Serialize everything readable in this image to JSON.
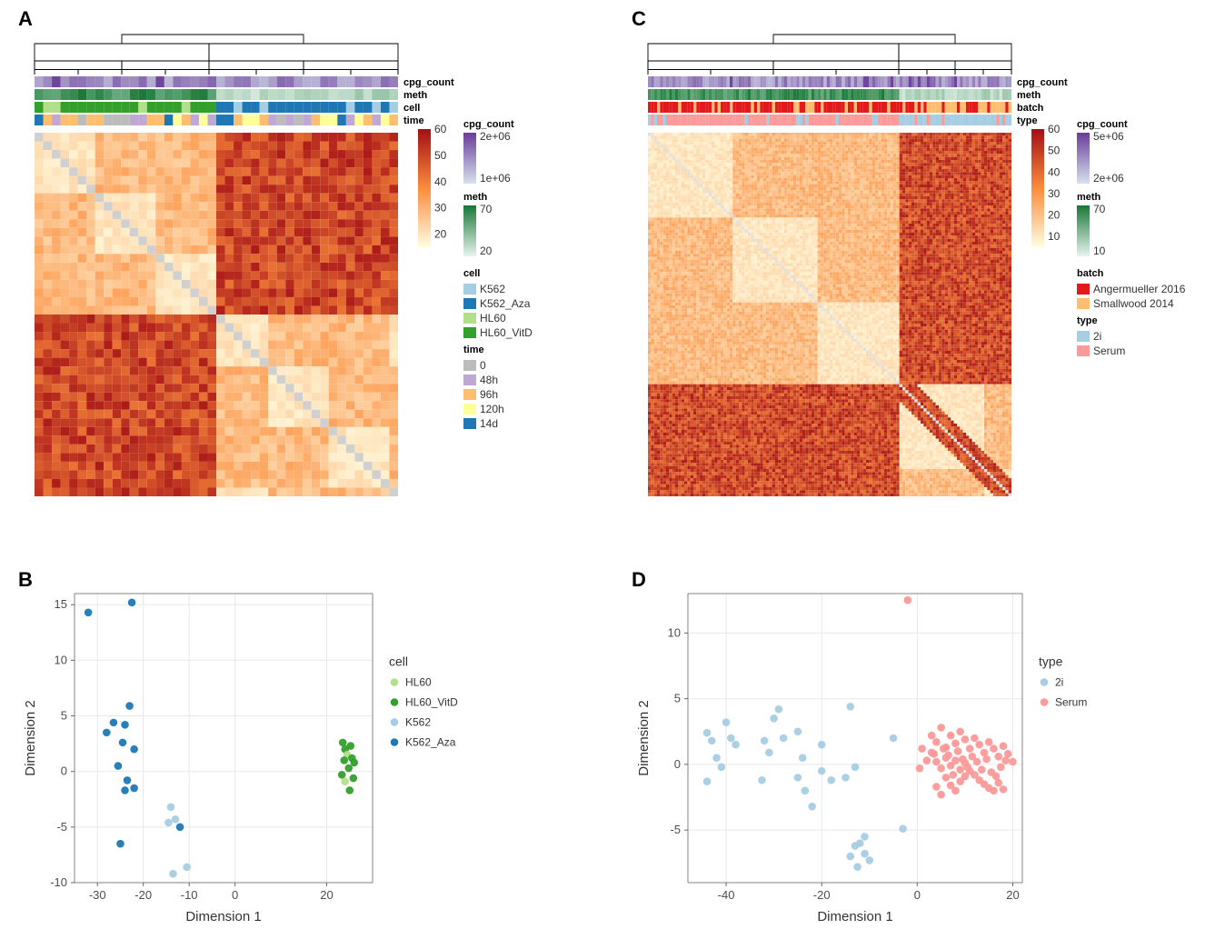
{
  "panelA": {
    "label": "A",
    "annotation_tracks": [
      "cpg_count",
      "meth",
      "cell",
      "time"
    ],
    "legends": {
      "heatmap_scale": {
        "ticks": [
          20,
          30,
          40,
          50,
          60
        ],
        "min": 15,
        "max": 60
      },
      "cpg_count": {
        "title": "cpg_count",
        "ticks": [
          "1e+06",
          "2e+06"
        ],
        "colors_low": "#d8e3ed",
        "colors_high": "#6a3d9a"
      },
      "meth": {
        "title": "meth",
        "ticks": [
          "20",
          "70"
        ],
        "colors_low": "#e8f5f0",
        "colors_high": "#1b7837"
      },
      "cell": {
        "title": "cell",
        "items": [
          "K562",
          "K562_Aza",
          "HL60",
          "HL60_VitD"
        ],
        "colors": [
          "#a6cee3",
          "#1f78b4",
          "#b2df8a",
          "#33a02c"
        ]
      },
      "time": {
        "title": "time",
        "items": [
          "0",
          "48h",
          "96h",
          "120h",
          "14d"
        ],
        "colors": [
          "#bcbcbc",
          "#bfa8d4",
          "#fdbf6f",
          "#ffff99",
          "#1f78b4"
        ]
      }
    },
    "heatmap": {
      "n": 42,
      "diag_color": "#d0d0d0",
      "colormap": {
        "low": "#fffee3",
        "mid": "#fc8d3c",
        "high": "#a50f15"
      }
    },
    "dendrogram_major_split": 0.48
  },
  "panelB": {
    "label": "B",
    "type": "scatter",
    "xlabel": "Dimension 1",
    "ylabel": "Dimension 2",
    "xlim": [
      -35,
      30
    ],
    "ylim": [
      -10,
      16
    ],
    "xticks": [
      -30,
      -20,
      -10,
      0,
      20
    ],
    "yticks": [
      -10,
      -5,
      0,
      5,
      10,
      15
    ],
    "grid_color": "#e8e8e8",
    "background_color": "#ffffff",
    "legend": {
      "title": "cell",
      "items": [
        "HL60",
        "HL60_VitD",
        "K562",
        "K562_Aza"
      ],
      "colors": [
        "#b2df8a",
        "#33a02c",
        "#a6cee3",
        "#1f78b4"
      ]
    },
    "points": [
      {
        "x": -32,
        "y": 14.3,
        "c": "#1f78b4"
      },
      {
        "x": -22.5,
        "y": 15.2,
        "c": "#1f78b4"
      },
      {
        "x": -28,
        "y": 3.5,
        "c": "#1f78b4"
      },
      {
        "x": -26.5,
        "y": 4.4,
        "c": "#1f78b4"
      },
      {
        "x": -24,
        "y": 4.2,
        "c": "#1f78b4"
      },
      {
        "x": -23,
        "y": 5.9,
        "c": "#1f78b4"
      },
      {
        "x": -24.5,
        "y": 2.6,
        "c": "#1f78b4"
      },
      {
        "x": -22,
        "y": 2.0,
        "c": "#1f78b4"
      },
      {
        "x": -25.5,
        "y": 0.5,
        "c": "#1f78b4"
      },
      {
        "x": -23.5,
        "y": -0.8,
        "c": "#1f78b4"
      },
      {
        "x": -24,
        "y": -1.7,
        "c": "#1f78b4"
      },
      {
        "x": -22,
        "y": -1.5,
        "c": "#1f78b4"
      },
      {
        "x": -25,
        "y": -6.5,
        "c": "#1f78b4"
      },
      {
        "x": -14,
        "y": -3.2,
        "c": "#a6cee3"
      },
      {
        "x": -13,
        "y": -4.3,
        "c": "#a6cee3"
      },
      {
        "x": -14.5,
        "y": -4.6,
        "c": "#a6cee3"
      },
      {
        "x": -12,
        "y": -5.0,
        "c": "#1f78b4"
      },
      {
        "x": -10.5,
        "y": -8.6,
        "c": "#a6cee3"
      },
      {
        "x": -13.5,
        "y": -9.2,
        "c": "#a6cee3"
      },
      {
        "x": 23.5,
        "y": 2.6,
        "c": "#33a02c"
      },
      {
        "x": 24.0,
        "y": 2.0,
        "c": "#33a02c"
      },
      {
        "x": 25.2,
        "y": 2.3,
        "c": "#33a02c"
      },
      {
        "x": 24.5,
        "y": 1.5,
        "c": "#b2df8a"
      },
      {
        "x": 23.8,
        "y": 1.0,
        "c": "#33a02c"
      },
      {
        "x": 25.5,
        "y": 1.2,
        "c": "#33a02c"
      },
      {
        "x": 26.0,
        "y": 0.8,
        "c": "#33a02c"
      },
      {
        "x": 24.8,
        "y": 0.3,
        "c": "#33a02c"
      },
      {
        "x": 23.3,
        "y": -0.3,
        "c": "#33a02c"
      },
      {
        "x": 24.0,
        "y": -0.9,
        "c": "#b2df8a"
      },
      {
        "x": 25.0,
        "y": -1.7,
        "c": "#33a02c"
      },
      {
        "x": 25.8,
        "y": -0.6,
        "c": "#33a02c"
      }
    ]
  },
  "panelC": {
    "label": "C",
    "annotation_tracks": [
      "cpg_count",
      "meth",
      "batch",
      "type"
    ],
    "legends": {
      "heatmap_scale": {
        "ticks": [
          10,
          20,
          30,
          40,
          50,
          60
        ],
        "min": 5,
        "max": 60
      },
      "cpg_count": {
        "title": "cpg_count",
        "ticks": [
          "2e+06",
          "5e+06"
        ],
        "colors_low": "#d8e3ed",
        "colors_high": "#6a3d9a"
      },
      "meth": {
        "title": "meth",
        "ticks": [
          "10",
          "70"
        ],
        "colors_low": "#e8f5f0",
        "colors_high": "#1b7837"
      },
      "batch": {
        "title": "batch",
        "items": [
          "Angermueller 2016",
          "Smallwood 2014"
        ],
        "colors": [
          "#e31a1c",
          "#fdbf6f"
        ]
      },
      "type": {
        "title": "type",
        "items": [
          "2i",
          "Serum"
        ],
        "colors": [
          "#a6cee3",
          "#fb9a99"
        ]
      }
    },
    "heatmap": {
      "n": 120,
      "diag_color": "#e0e0e0",
      "colormap": {
        "low": "#fffee3",
        "mid": "#fc8d3c",
        "high": "#a50f15"
      }
    },
    "dendrogram_major_split": 0.69
  },
  "panelD": {
    "label": "D",
    "type": "scatter",
    "xlabel": "Dimension 1",
    "ylabel": "Dimension 2",
    "xlim": [
      -48,
      22
    ],
    "ylim": [
      -9,
      13
    ],
    "xticks": [
      -40,
      -20,
      0,
      20
    ],
    "yticks": [
      -5,
      0,
      5,
      10
    ],
    "grid_color": "#e8e8e8",
    "background_color": "#ffffff",
    "legend": {
      "title": "type",
      "items": [
        "2i",
        "Serum"
      ],
      "colors": [
        "#a6cee3",
        "#fb9a99"
      ]
    },
    "points_2i": [
      [
        -44,
        2.4
      ],
      [
        -43,
        1.8
      ],
      [
        -40,
        3.2
      ],
      [
        -39,
        2.0
      ],
      [
        -38,
        1.5
      ],
      [
        -42,
        0.5
      ],
      [
        -41,
        -0.2
      ],
      [
        -44,
        -1.3
      ],
      [
        -32,
        1.8
      ],
      [
        -31,
        0.9
      ],
      [
        -32.5,
        -1.2
      ],
      [
        -30,
        3.5
      ],
      [
        -28,
        2.0
      ],
      [
        -29,
        4.2
      ],
      [
        -25,
        -1.0
      ],
      [
        -24,
        0.5
      ],
      [
        -22,
        -3.2
      ],
      [
        -23.5,
        -2.0
      ],
      [
        -25,
        2.5
      ],
      [
        -20,
        -0.5
      ],
      [
        -18,
        -1.2
      ],
      [
        -20,
        1.5
      ],
      [
        -14,
        4.4
      ],
      [
        -15,
        -1.0
      ],
      [
        -13,
        -0.2
      ],
      [
        -12,
        -6.0
      ],
      [
        -11,
        -6.8
      ],
      [
        -13,
        -6.2
      ],
      [
        -10,
        -7.3
      ],
      [
        -12.5,
        -7.8
      ],
      [
        -14,
        -7.0
      ],
      [
        -11,
        -5.5
      ],
      [
        -5,
        2.0
      ],
      [
        -3,
        -4.9
      ]
    ],
    "points_serum": [
      [
        -2,
        12.5
      ],
      [
        3,
        2.2
      ],
      [
        4,
        1.7
      ],
      [
        5,
        2.8
      ],
      [
        6,
        1.3
      ],
      [
        3.5,
        0.8
      ],
      [
        7,
        2.2
      ],
      [
        8,
        1.6
      ],
      [
        9,
        2.5
      ],
      [
        10,
        1.9
      ],
      [
        11,
        1.2
      ],
      [
        12,
        2.0
      ],
      [
        13,
        1.5
      ],
      [
        14,
        0.9
      ],
      [
        15,
        1.7
      ],
      [
        16,
        1.2
      ],
      [
        17,
        0.6
      ],
      [
        18,
        1.4
      ],
      [
        19,
        0.8
      ],
      [
        20,
        0.2
      ],
      [
        4,
        0.2
      ],
      [
        5,
        -0.3
      ],
      [
        6,
        0.5
      ],
      [
        7,
        -0.1
      ],
      [
        8,
        0.3
      ],
      [
        9,
        -0.4
      ],
      [
        10,
        0.1
      ],
      [
        11,
        -0.5
      ],
      [
        12,
        -0.8
      ],
      [
        13,
        -1.2
      ],
      [
        14,
        -1.5
      ],
      [
        15,
        -1.8
      ],
      [
        16,
        -2.0
      ],
      [
        17,
        -1.4
      ],
      [
        18,
        -1.9
      ],
      [
        6,
        -1.0
      ],
      [
        7,
        -1.6
      ],
      [
        8,
        -2.0
      ],
      [
        9,
        -1.3
      ],
      [
        10,
        -0.9
      ],
      [
        5,
        -2.3
      ],
      [
        4,
        -1.7
      ],
      [
        3,
        0.9
      ],
      [
        2,
        0.3
      ],
      [
        1,
        1.2
      ],
      [
        0.5,
        -0.3
      ],
      [
        5.5,
        1.2
      ],
      [
        6.5,
        0.7
      ],
      [
        7.5,
        -0.8
      ],
      [
        8.5,
        1.0
      ],
      [
        9.5,
        0.4
      ],
      [
        10.5,
        -0.2
      ],
      [
        11.5,
        0.6
      ],
      [
        12.5,
        0.2
      ],
      [
        13.5,
        -0.4
      ],
      [
        14.5,
        0.4
      ],
      [
        15.5,
        -0.6
      ],
      [
        16.5,
        -0.9
      ],
      [
        17.5,
        -0.2
      ],
      [
        18.5,
        0.3
      ]
    ]
  }
}
